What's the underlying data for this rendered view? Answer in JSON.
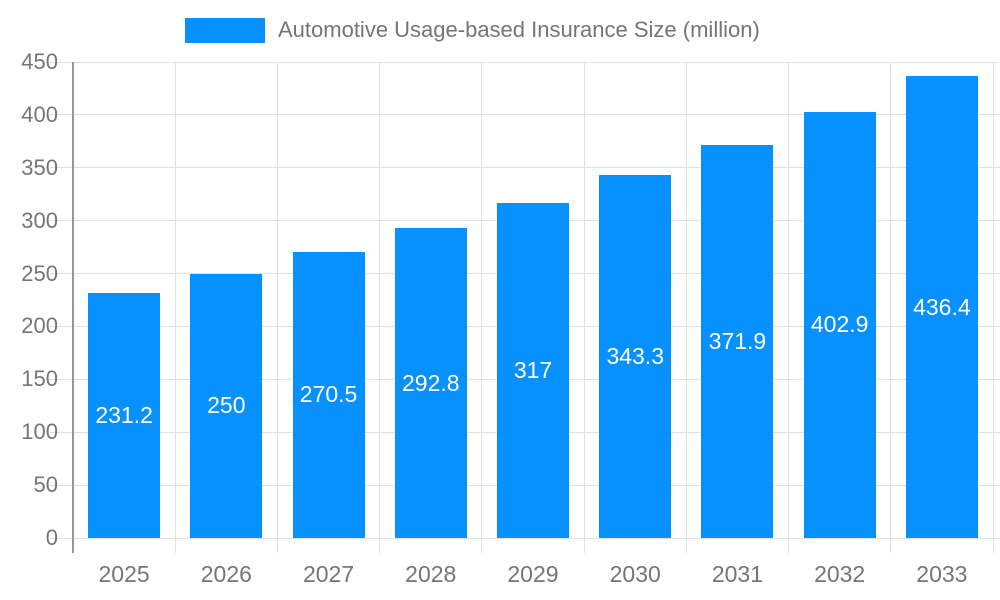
{
  "legend": {
    "label": "Automotive Usage-based Insurance Size (million)"
  },
  "chart_data": {
    "type": "bar",
    "title": "Automotive Usage-based Insurance Size (million)",
    "categories": [
      "2025",
      "2026",
      "2027",
      "2028",
      "2029",
      "2030",
      "2031",
      "2032",
      "2033"
    ],
    "values": [
      231.2,
      250,
      270.5,
      292.8,
      317,
      343.3,
      371.9,
      402.9,
      436.4
    ],
    "value_labels": [
      "231.2",
      "250",
      "270.5",
      "292.8",
      "317",
      "343.3",
      "371.9",
      "402.9",
      "436.4"
    ],
    "xlabel": "",
    "ylabel": "",
    "ylim": [
      0,
      450
    ],
    "yticks": [
      0,
      50,
      100,
      150,
      200,
      250,
      300,
      350,
      400,
      450
    ],
    "grid": true,
    "legend_position": "top-center",
    "value_label_position": "inside-center",
    "colors": {
      "bar": "#0691FF",
      "grid": "#e0e0e0",
      "axis": "#969696",
      "tick_text": "#757575",
      "legend_text": "#757575",
      "value_label_text": "#ffffff",
      "background": "#ffffff"
    }
  }
}
